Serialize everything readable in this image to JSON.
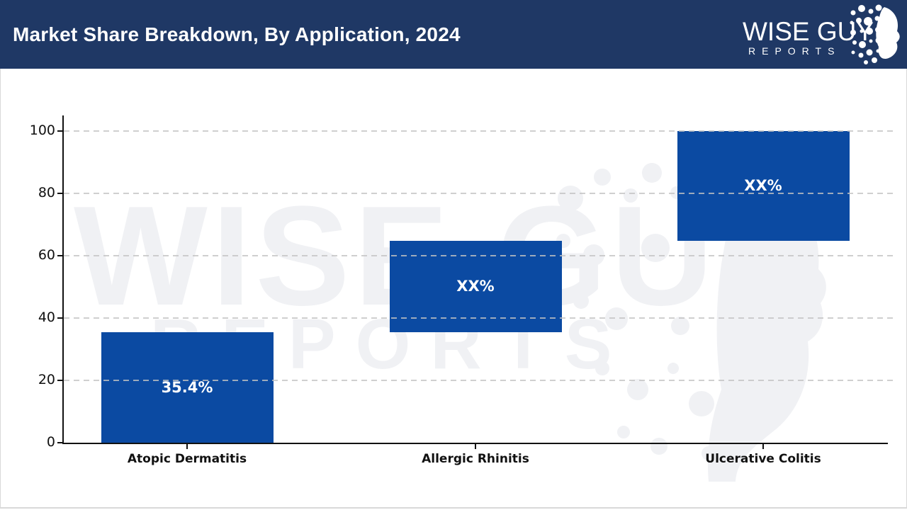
{
  "header": {
    "title": "Market Share Breakdown, By Application, 2024",
    "logo": {
      "line1": "WISE GUY",
      "line2": "REPORTS"
    }
  },
  "watermark": {
    "line1": "WISE GUY",
    "line2": "REPORTS"
  },
  "colors": {
    "header_bg": "#1f3865",
    "bar": "#0b4aa2",
    "bar_label": "#ffffff",
    "axis": "#111111",
    "gridline": "#c9c9c9",
    "watermark": "#f0f1f4"
  },
  "chart_data": {
    "type": "bar",
    "subtype": "waterfall",
    "title": "Market Share Breakdown, By Application, 2024",
    "categories": [
      "Atopic Dermatitis",
      "Allergic Rhinitis",
      "Ulcerative Colitis"
    ],
    "segments": [
      {
        "category": "Atopic Dermatitis",
        "start": 0,
        "end": 35.4,
        "label": "35.4%"
      },
      {
        "category": "Allergic Rhinitis",
        "start": 35.4,
        "end": 64.8,
        "label": "XX%"
      },
      {
        "category": "Ulcerative Colitis",
        "start": 64.8,
        "end": 100,
        "label": "XX%"
      }
    ],
    "y_ticks": [
      0,
      20,
      40,
      60,
      80,
      100
    ],
    "ylim": [
      0,
      105
    ],
    "xlabel": "",
    "ylabel": "",
    "grid": "horizontal-dashed",
    "legend": "none"
  }
}
